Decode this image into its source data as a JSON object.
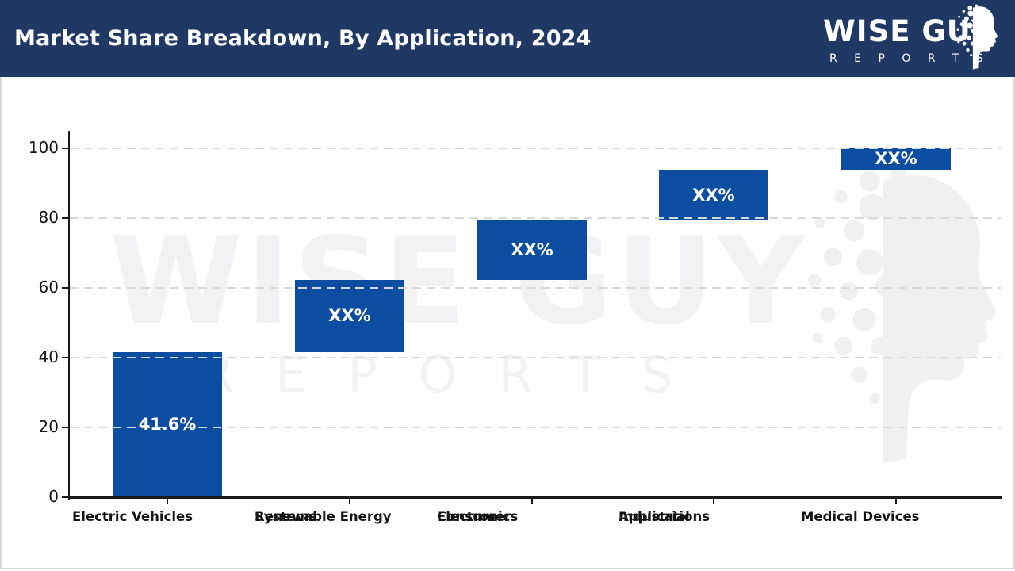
{
  "header": {
    "title": "Market Share Breakdown, By Application, 2024",
    "logo": {
      "line1": "WISE GUY",
      "line2": "R E P O R T S"
    },
    "bg_color": "#1f3864"
  },
  "watermark": {
    "line1": "WISE GUY",
    "line2": "REPORTS"
  },
  "chart_data": {
    "type": "bar",
    "variant": "waterfall",
    "title": "Market Share Breakdown, By Application, 2024",
    "categories": [
      "Electric Vehicles",
      "Renewable Energy\nSystems",
      "Consumer\nElectronics",
      "Industrial\nApplications",
      "Medical Devices"
    ],
    "series": [
      {
        "name": "Market share (%)",
        "segments": [
          {
            "category": "Electric Vehicles",
            "start": 0,
            "end": 41.6,
            "value": 41.6,
            "label": "41.6%"
          },
          {
            "category": "Renewable Energy Systems",
            "start": 41.6,
            "end": 62.3,
            "value": 20.7,
            "label": "XX%"
          },
          {
            "category": "Consumer Electronics",
            "start": 62.3,
            "end": 79.5,
            "value": 17.2,
            "label": "XX%"
          },
          {
            "category": "Industrial Applications",
            "start": 79.5,
            "end": 93.9,
            "value": 14.4,
            "label": "XX%"
          },
          {
            "category": "Medical Devices",
            "start": 93.9,
            "end": 100,
            "value": 6.1,
            "label": "XX%"
          }
        ]
      }
    ],
    "xlabel": "",
    "ylabel": "",
    "yticks": [
      0,
      20,
      40,
      60,
      80,
      100
    ],
    "ylim": [
      0,
      105
    ],
    "grid": {
      "horizontal": true,
      "style": "dashed",
      "color": "#d8d8d8",
      "drawn_over_bars": true
    },
    "legend": "none",
    "bar_color": "#0a4da1",
    "bar_label_color": "#ffffff",
    "axis_color": "#1a1a1a"
  }
}
